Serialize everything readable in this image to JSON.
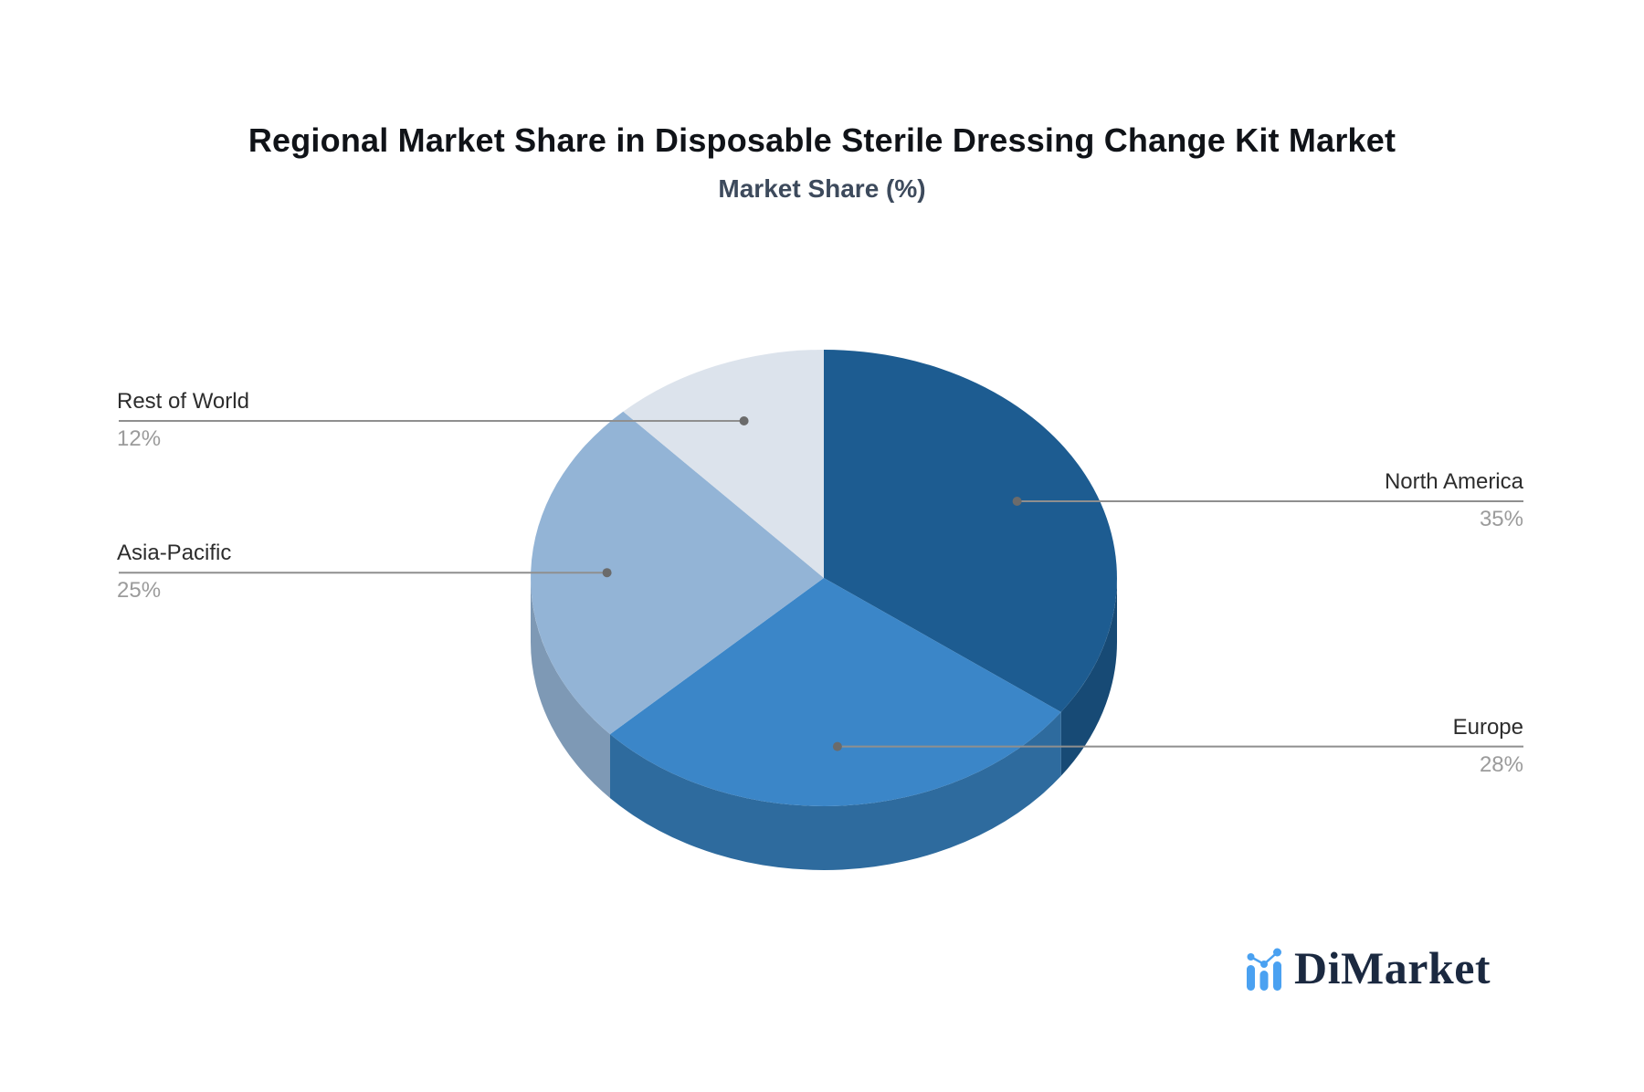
{
  "header": {
    "title": "Regional Market Share in Disposable Sterile Dressing Change Kit Market",
    "subtitle": "Market Share (%)"
  },
  "chart_data": {
    "type": "pie",
    "variant": "3d-pie",
    "title": "Regional Market Share in Disposable Sterile Dressing Change Kit Market",
    "subtitle": "Market Share (%)",
    "unit": "%",
    "start_angle_deg": 0,
    "clockwise": true,
    "legend": "none",
    "categories": [
      "North America",
      "Europe",
      "Asia-Pacific",
      "Rest of World"
    ],
    "values": [
      35,
      28,
      25,
      12
    ],
    "slices": [
      {
        "name": "North America",
        "value": 35,
        "pct_label": "35%",
        "color": "#1d5c91",
        "side_color": "#174a75"
      },
      {
        "name": "Europe",
        "value": 28,
        "pct_label": "28%",
        "color": "#3b86c8",
        "side_color": "#2e6b9e"
      },
      {
        "name": "Asia-Pacific",
        "value": 25,
        "pct_label": "25%",
        "color": "#93b4d6",
        "side_color": "#7e99b5"
      },
      {
        "name": "Rest of World",
        "value": 12,
        "pct_label": "12%",
        "color": "#dce3ec",
        "side_color": "#c3cdda"
      }
    ],
    "label_style": {
      "name_color": "#2d2d2d",
      "percent_color": "#9b9b9b",
      "line_color": "#8f8f8f",
      "dot_color": "#6b6b6b"
    }
  },
  "branding": {
    "logo_text": "DiMarket",
    "logo_icon": "bar-chart-trend-icon",
    "logo_text_color": "#1b2940",
    "logo_icon_color": "#4aa1f1"
  }
}
